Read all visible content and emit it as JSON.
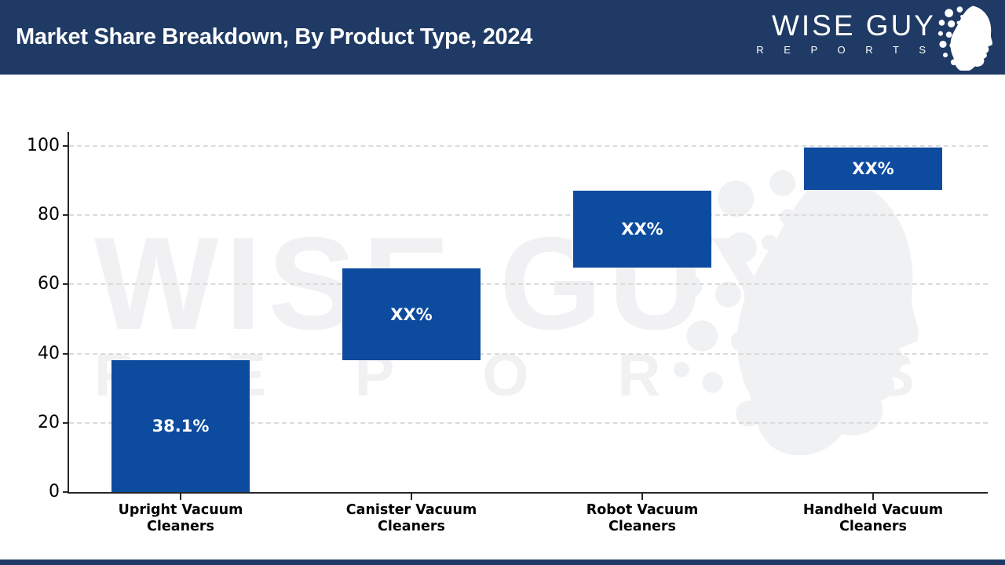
{
  "header": {
    "title": "Market Share Breakdown, By Product Type, 2024",
    "logo_line1": "WISE GUY",
    "logo_line2": "R E P O R T S"
  },
  "watermark": {
    "line1": "WISE GUY",
    "line2": "R E P O R T S"
  },
  "colors": {
    "header_bg": "#1F3A64",
    "bar_blue": "#0D4B9F",
    "grid_gray": "#DBDBDB",
    "watermark_gray": "#F1F1F3",
    "footer_bar": "#1F3A64"
  },
  "chart_data": {
    "type": "bar",
    "subtype": "waterfall",
    "title": "Market Share Breakdown, By Product Type, 2024",
    "xlabel": "",
    "ylabel": "",
    "ylim": [
      0,
      100
    ],
    "yticks": [
      0,
      20,
      40,
      60,
      80,
      100
    ],
    "grid": "horizontal-dashed",
    "legend": "none",
    "bar_color": "#0D4B9F",
    "bar_label_color": "#FFFFFF",
    "categories": [
      [
        "Upright Vacuum",
        "Cleaners"
      ],
      [
        "Canister Vacuum",
        "Cleaners"
      ],
      [
        "Robot Vacuum",
        "Cleaners"
      ],
      [
        "Handheld Vacuum",
        "Cleaners"
      ]
    ],
    "bars": [
      {
        "label": "38.1%",
        "start": 0,
        "end": 38.1
      },
      {
        "label": "XX%",
        "start": 38.1,
        "end": 64.6
      },
      {
        "label": "XX%",
        "start": 64.8,
        "end": 87.0
      },
      {
        "label": "XX%",
        "start": 87.3,
        "end": 99.6
      }
    ]
  }
}
